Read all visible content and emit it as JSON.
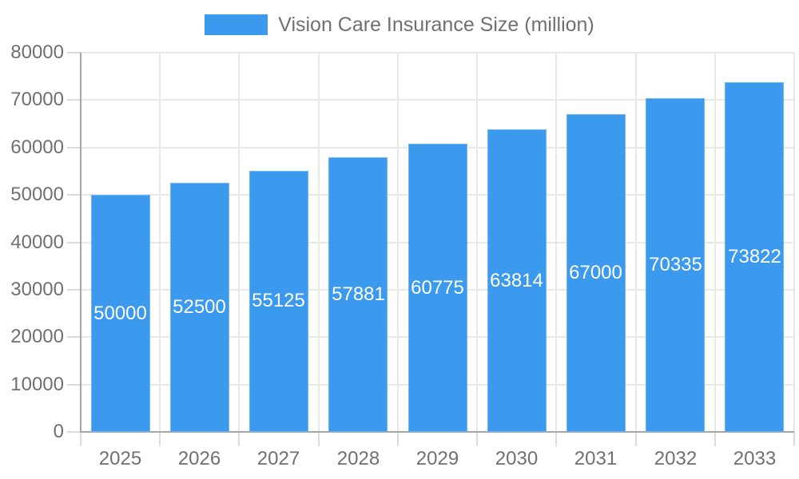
{
  "legend": {
    "label": "Vision Care Insurance Size (million)"
  },
  "colors": {
    "bar": "#3B99EE",
    "bar_value_text": "#FFFFFF",
    "axis_line": "#A6A6A6",
    "gridline": "#E8E8E8",
    "tick": "#DCDCDC",
    "axis_text": "#707070",
    "background": "#FFFFFF"
  },
  "chart_data": {
    "type": "bar",
    "title": "Vision Care Insurance Size (million)",
    "series_name": "Vision Care Insurance Size (million)",
    "categories": [
      "2025",
      "2026",
      "2027",
      "2028",
      "2029",
      "2030",
      "2031",
      "2032",
      "2033"
    ],
    "values": [
      50000,
      52500,
      55125,
      57881,
      60775,
      63814,
      67000,
      70335,
      73822
    ],
    "xlabel": "",
    "ylabel": "",
    "ylim": [
      0,
      80000
    ],
    "ytick_interval": 10000,
    "ytick_labels": [
      "0",
      "10000",
      "20000",
      "30000",
      "40000",
      "50000",
      "60000",
      "70000",
      "80000"
    ],
    "grid": true,
    "legend_position": "top-center",
    "value_label_position": "inside-center"
  }
}
